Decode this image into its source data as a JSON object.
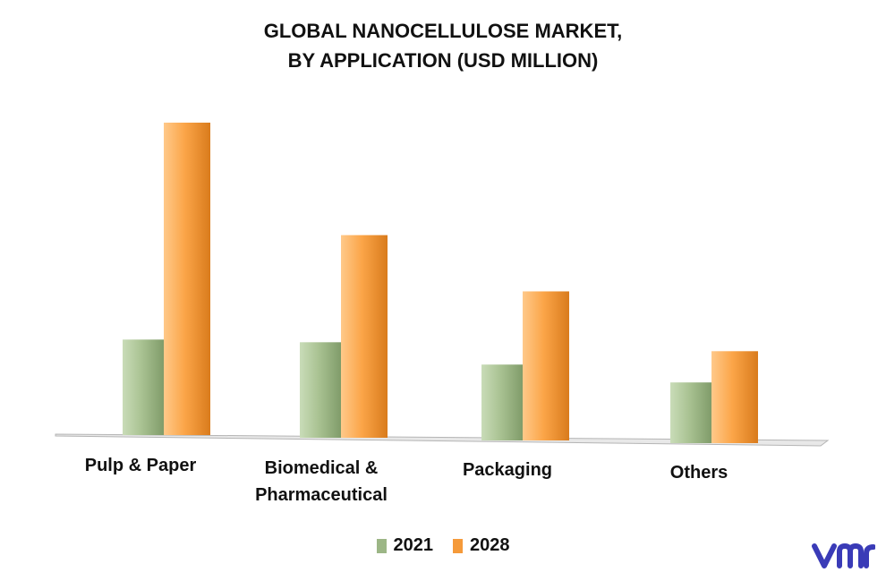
{
  "chart_data": {
    "type": "bar",
    "title_lines": [
      "GLOBAL NANOCELLULOSE MARKET,",
      "BY APPLICATION (USD MILLION)"
    ],
    "categories": [
      [
        "Pulp & Paper"
      ],
      [
        "Biomedical &",
        "Pharmaceutical"
      ],
      [
        "Packaging"
      ],
      [
        "Others"
      ]
    ],
    "series": [
      {
        "name": "2021",
        "color": "#9cb686",
        "values": [
          107,
          107,
          85,
          68
        ]
      },
      {
        "name": "2028",
        "color": "#f59a3a",
        "values": [
          350,
          227,
          167,
          103
        ]
      }
    ],
    "ylim": [
      0,
      350
    ],
    "grid": false,
    "legend_position": "bottom-center"
  },
  "logo": {
    "name": "vmr-logo",
    "color": "#3a3bb7"
  }
}
